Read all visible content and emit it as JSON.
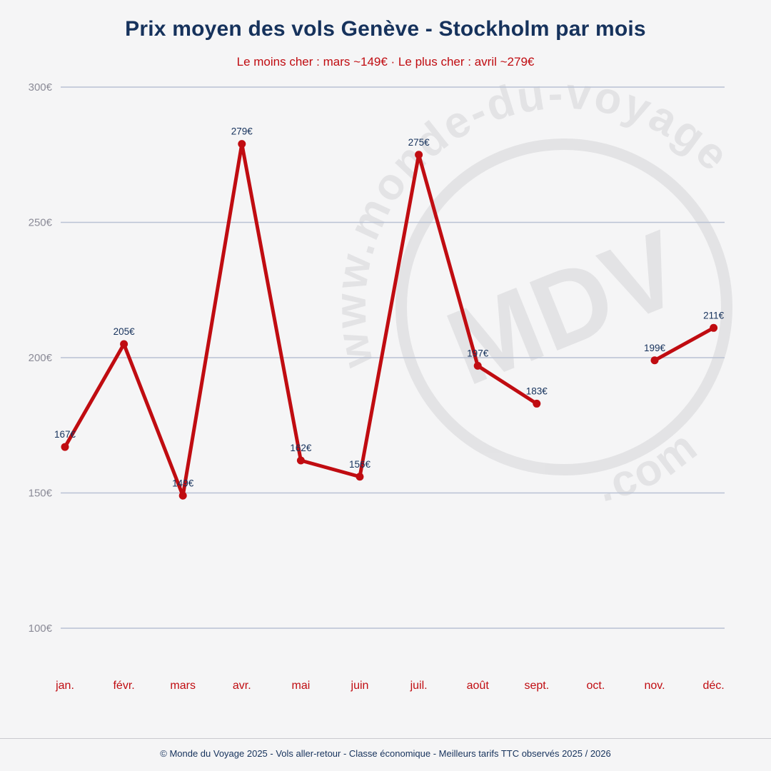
{
  "page": {
    "title": "Prix moyen des vols Genève - Stockholm par mois",
    "subtitle": "Le moins cher : mars ~149€ · Le plus cher : avril ~279€",
    "footer": "© Monde du Voyage 2025 - Vols aller-retour - Classe économique - Meilleurs tarifs TTC observés 2025 / 2026"
  },
  "watermark": {
    "text_top": "www.monde-du-voyage",
    "text_bottom": ".com",
    "badge": "MDV"
  },
  "colors": {
    "accent_red": "#c00c11",
    "navy": "#16325c",
    "grid": "#b9c2d4",
    "axis_text": "#8b8b97",
    "background": "#f5f5f6"
  },
  "chart_data": {
    "type": "line",
    "title": "Prix moyen des vols Genève - Stockholm par mois",
    "subtitle": "Le moins cher : mars ~149€ · Le plus cher : avril ~279€",
    "categories": [
      "jan.",
      "févr.",
      "mars",
      "avr.",
      "mai",
      "juin",
      "juil.",
      "août",
      "sept.",
      "oct.",
      "nov.",
      "déc."
    ],
    "values": [
      167,
      205,
      149,
      279,
      162,
      156,
      275,
      197,
      183,
      null,
      199,
      211
    ],
    "unit": "€",
    "ylim": [
      100,
      300
    ],
    "yticks": [
      300,
      250,
      200,
      150,
      100
    ],
    "grid": true,
    "legend": false,
    "min_label": "mars ~149€",
    "max_label": "avril ~279€"
  }
}
